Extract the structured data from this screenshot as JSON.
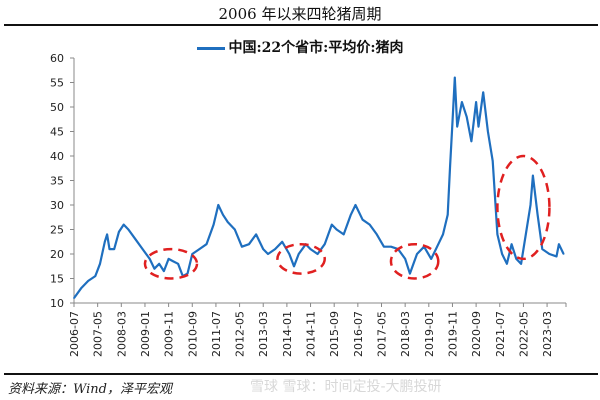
{
  "chart_data": {
    "type": "line",
    "title": "2006 年以来四轮猪周期",
    "xlabel": "",
    "ylabel": "",
    "ylim": [
      10,
      60
    ],
    "yticks": [
      "10",
      "15",
      "20",
      "25",
      "30",
      "35",
      "40",
      "45",
      "50",
      "55",
      "60"
    ],
    "xlim": [
      "2006-07",
      "2023-11"
    ],
    "xticks": [
      "2006-07",
      "2007-05",
      "2008-03",
      "2009-01",
      "2009-11",
      "2010-09",
      "2011-07",
      "2012-05",
      "2013-03",
      "2014-01",
      "2014-11",
      "2015-09",
      "2016-07",
      "2017-05",
      "2018-03",
      "2019-01",
      "2019-11",
      "2020-09",
      "2021-07",
      "2022-05",
      "2023-03"
    ],
    "grid": false,
    "legend_position": "top-center",
    "series": [
      {
        "name": "中国:22个省市:平均价:猪肉",
        "color": "#1f6fbf",
        "points": [
          [
            "2006-07",
            11
          ],
          [
            "2006-10",
            13
          ],
          [
            "2007-01",
            14.5
          ],
          [
            "2007-04",
            15.5
          ],
          [
            "2007-06",
            18
          ],
          [
            "2007-08",
            22.5
          ],
          [
            "2007-09",
            24
          ],
          [
            "2007-10",
            21
          ],
          [
            "2007-12",
            21
          ],
          [
            "2008-02",
            24.5
          ],
          [
            "2008-04",
            26
          ],
          [
            "2008-06",
            25
          ],
          [
            "2008-09",
            23
          ],
          [
            "2008-12",
            21
          ],
          [
            "2009-03",
            19
          ],
          [
            "2009-05",
            17
          ],
          [
            "2009-07",
            18
          ],
          [
            "2009-09",
            16.5
          ],
          [
            "2009-11",
            19
          ],
          [
            "2010-01",
            18.5
          ],
          [
            "2010-03",
            18
          ],
          [
            "2010-05",
            15.5
          ],
          [
            "2010-07",
            16
          ],
          [
            "2010-09",
            20
          ],
          [
            "2010-12",
            21
          ],
          [
            "2011-03",
            22
          ],
          [
            "2011-06",
            26
          ],
          [
            "2011-08",
            30
          ],
          [
            "2011-10",
            28
          ],
          [
            "2011-12",
            26.5
          ],
          [
            "2012-03",
            25
          ],
          [
            "2012-06",
            21.5
          ],
          [
            "2012-09",
            22
          ],
          [
            "2012-12",
            24
          ],
          [
            "2013-03",
            21
          ],
          [
            "2013-05",
            20
          ],
          [
            "2013-08",
            21
          ],
          [
            "2013-11",
            22.5
          ],
          [
            "2014-02",
            20
          ],
          [
            "2014-04",
            17.5
          ],
          [
            "2014-06",
            20
          ],
          [
            "2014-09",
            22
          ],
          [
            "2014-11",
            21
          ],
          [
            "2015-02",
            20
          ],
          [
            "2015-05",
            22
          ],
          [
            "2015-08",
            26
          ],
          [
            "2015-10",
            25
          ],
          [
            "2016-01",
            24
          ],
          [
            "2016-04",
            28
          ],
          [
            "2016-06",
            30
          ],
          [
            "2016-09",
            27
          ],
          [
            "2016-12",
            26
          ],
          [
            "2017-03",
            24
          ],
          [
            "2017-06",
            21.5
          ],
          [
            "2017-09",
            21.5
          ],
          [
            "2017-12",
            21
          ],
          [
            "2018-03",
            19
          ],
          [
            "2018-05",
            16
          ],
          [
            "2018-08",
            20
          ],
          [
            "2018-11",
            21.5
          ],
          [
            "2019-02",
            19
          ],
          [
            "2019-05",
            22
          ],
          [
            "2019-07",
            24
          ],
          [
            "2019-09",
            28
          ],
          [
            "2019-10",
            38
          ],
          [
            "2019-11",
            47
          ],
          [
            "2019-12",
            56
          ],
          [
            "2020-01",
            46
          ],
          [
            "2020-03",
            51
          ],
          [
            "2020-05",
            48
          ],
          [
            "2020-07",
            43
          ],
          [
            "2020-09",
            51
          ],
          [
            "2020-10",
            46
          ],
          [
            "2020-12",
            53
          ],
          [
            "2021-02",
            45
          ],
          [
            "2021-04",
            39
          ],
          [
            "2021-06",
            24
          ],
          [
            "2021-08",
            20
          ],
          [
            "2021-10",
            18
          ],
          [
            "2021-12",
            22
          ],
          [
            "2022-02",
            19
          ],
          [
            "2022-04",
            18
          ],
          [
            "2022-06",
            24
          ],
          [
            "2022-08",
            30
          ],
          [
            "2022-09",
            36
          ],
          [
            "2022-11",
            28
          ],
          [
            "2023-01",
            21
          ],
          [
            "2023-04",
            20
          ],
          [
            "2023-07",
            19.5
          ],
          [
            "2023-08",
            22
          ],
          [
            "2023-10",
            20
          ]
        ]
      }
    ],
    "annotations": [
      {
        "type": "dashed-ellipse",
        "color": "#e02020",
        "x_range": [
          "2009-01",
          "2010-11"
        ],
        "y_range": [
          15,
          21
        ]
      },
      {
        "type": "dashed-ellipse",
        "color": "#e02020",
        "x_range": [
          "2013-09",
          "2015-05"
        ],
        "y_range": [
          16,
          22
        ]
      },
      {
        "type": "dashed-ellipse",
        "color": "#e02020",
        "x_range": [
          "2017-09",
          "2019-05"
        ],
        "y_range": [
          15,
          22
        ]
      },
      {
        "type": "dashed-ellipse",
        "color": "#e02020",
        "x_range": [
          "2021-06",
          "2023-04"
        ],
        "y_range": [
          19,
          40
        ]
      }
    ]
  },
  "source": "资料来源：Wind，泽平宏观",
  "watermark": "雪球   雪球：时间定投-大鹏投研"
}
